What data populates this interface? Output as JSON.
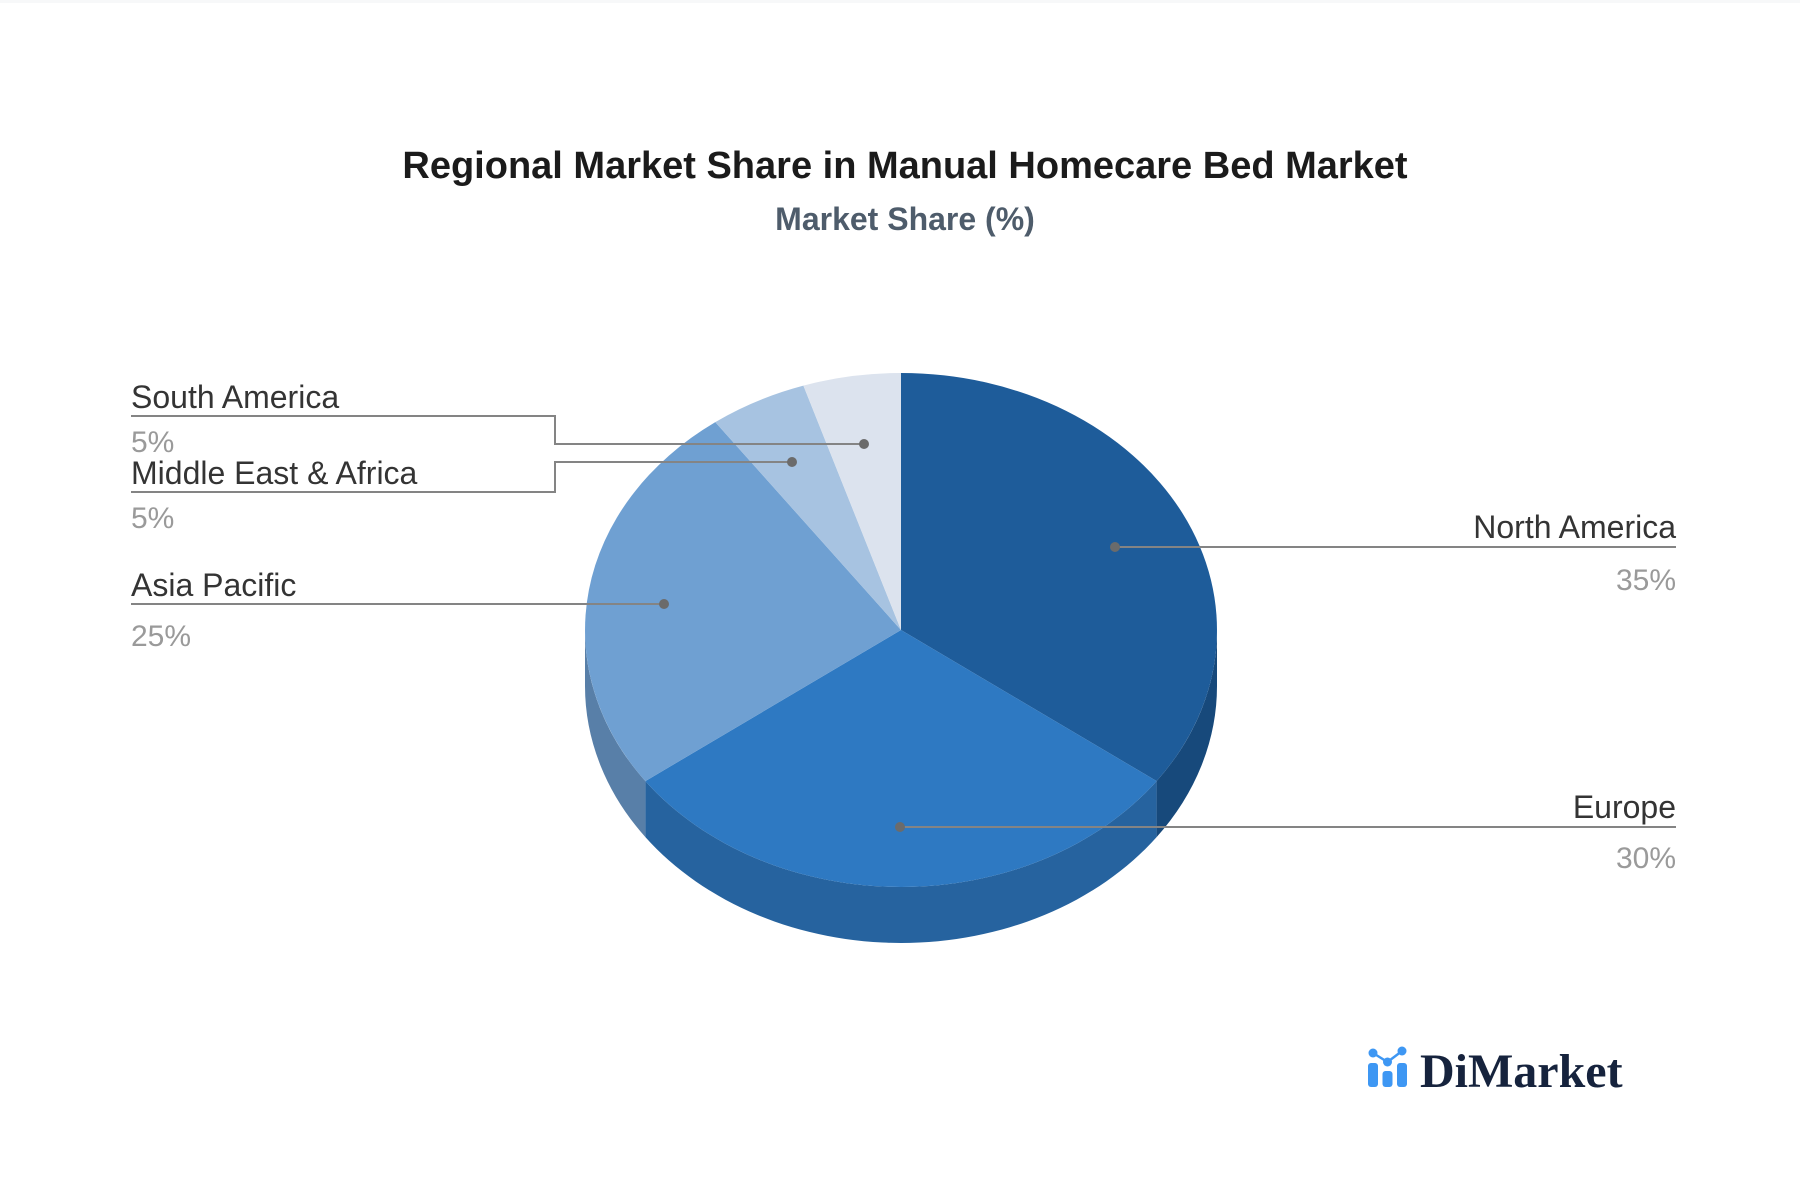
{
  "header": {
    "title": "Regional Market Share in Manual Homecare Bed Market",
    "subtitle": "Market Share (%)"
  },
  "chart_data": {
    "type": "pie",
    "title": "Regional Market Share in Manual Homecare Bed Market",
    "subtitle": "Market Share (%)",
    "unit": "%",
    "effect": "3d",
    "start_angle_deg": 0,
    "direction": "clockwise",
    "legend_position": "callout-labels",
    "labels": [
      "North America",
      "Europe",
      "Asia Pacific",
      "Middle East & Africa",
      "South America"
    ],
    "values": [
      35,
      30,
      25,
      5,
      5
    ],
    "display_percents": [
      "35%",
      "30%",
      "25%",
      "5%",
      "5%"
    ],
    "colors": [
      "#1E5C9A",
      "#2E79C2",
      "#6FA0D2",
      "#A7C3E1",
      "#DCE3EE"
    ],
    "side_colors": [
      "#17497B",
      "#26639F",
      "#587FA8",
      "#86A5C6",
      "#B8C3D3"
    ]
  },
  "style": {
    "title_color": "#1B1B1B",
    "subtitle_color": "#4E5C6B",
    "label_color": "#343434",
    "percent_color": "#9A9A9A",
    "leader_color": "#848484",
    "dot_color": "#6B6B6B",
    "top_strip_color": "#F7F8F9"
  },
  "branding": {
    "logo_text": "DiMarket",
    "logo_text_color": "#16233D",
    "logo_icon_color": "#3E97F3"
  }
}
